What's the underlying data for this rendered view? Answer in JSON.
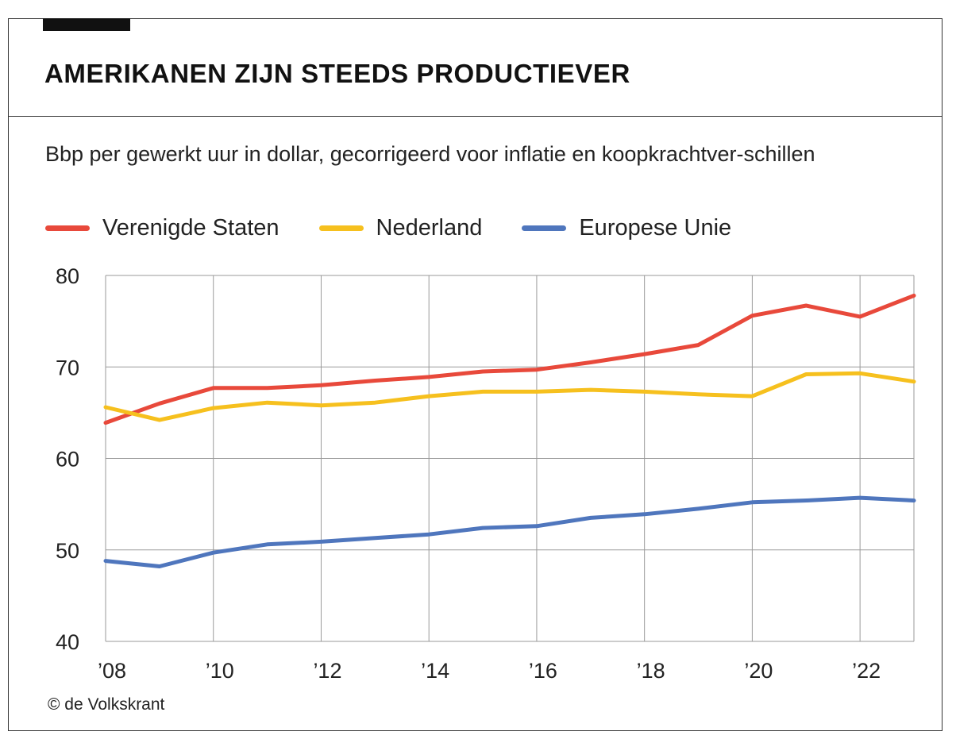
{
  "header": {
    "title": "AMERIKANEN ZIJN STEEDS PRODUCTIEVER"
  },
  "chart_data": {
    "type": "line",
    "subtitle": "Bbp per gewerkt uur in dollar, gecorrigeerd voor inflatie en koopkrachtver-schillen",
    "x": [
      2008,
      2009,
      2010,
      2011,
      2012,
      2013,
      2014,
      2015,
      2016,
      2017,
      2018,
      2019,
      2020,
      2021,
      2022,
      2023
    ],
    "xlim": [
      2008,
      2023
    ],
    "xticks": [
      2008,
      2010,
      2012,
      2014,
      2016,
      2018,
      2020,
      2022
    ],
    "xtick_labels": [
      "’08",
      "’10",
      "’12",
      "’14",
      "’16",
      "’18",
      "’20",
      "’22"
    ],
    "ylim": [
      40,
      80
    ],
    "yticks": [
      40,
      50,
      60,
      70,
      80
    ],
    "ytick_labels": [
      "40",
      "50",
      "60",
      "70",
      "80"
    ],
    "xlabel": "",
    "ylabel": "",
    "grid": true,
    "legend_position": "top-left",
    "series": [
      {
        "name": "Verenigde Staten",
        "color": "#e8493b",
        "values": [
          63.9,
          66.0,
          67.7,
          67.7,
          68.0,
          68.5,
          68.9,
          69.5,
          69.7,
          70.5,
          71.4,
          72.4,
          75.6,
          76.7,
          75.5,
          77.8
        ]
      },
      {
        "name": "Nederland",
        "color": "#f6c01e",
        "values": [
          65.6,
          64.2,
          65.5,
          66.1,
          65.8,
          66.1,
          66.8,
          67.3,
          67.3,
          67.5,
          67.3,
          67.0,
          66.8,
          69.2,
          69.3,
          68.4
        ]
      },
      {
        "name": "Europese Unie",
        "color": "#4f76bd",
        "values": [
          48.8,
          48.2,
          49.7,
          50.6,
          50.9,
          51.3,
          51.7,
          52.4,
          52.6,
          53.5,
          53.9,
          54.5,
          55.2,
          55.4,
          55.7,
          55.4
        ]
      }
    ]
  },
  "footer": {
    "credit": "© de Volkskrant"
  }
}
